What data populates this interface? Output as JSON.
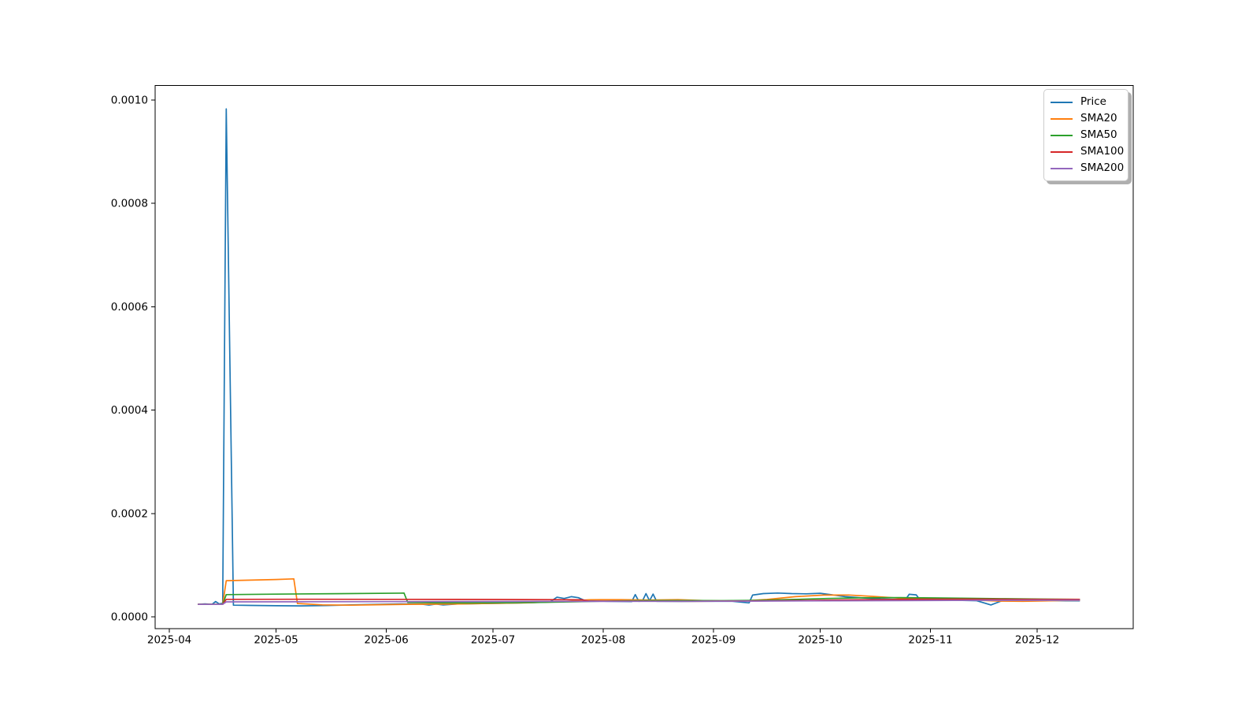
{
  "chart_data": {
    "type": "line",
    "title": "",
    "xlabel": "",
    "ylabel": "",
    "grid": false,
    "x_axis": {
      "start": "2025-03-28",
      "end": "2025-12-28",
      "ticks": [
        {
          "label": "2025-04",
          "date": "2025-04-01"
        },
        {
          "label": "2025-05",
          "date": "2025-05-01"
        },
        {
          "label": "2025-06",
          "date": "2025-06-01"
        },
        {
          "label": "2025-07",
          "date": "2025-07-01"
        },
        {
          "label": "2025-08",
          "date": "2025-08-01"
        },
        {
          "label": "2025-09",
          "date": "2025-09-01"
        },
        {
          "label": "2025-10",
          "date": "2025-10-01"
        },
        {
          "label": "2025-11",
          "date": "2025-11-01"
        },
        {
          "label": "2025-12",
          "date": "2025-12-01"
        }
      ]
    },
    "y_axis": {
      "min": -2.29e-05,
      "max": 0.0010282,
      "ticks": [
        {
          "label": "0.0000",
          "value": 0.0
        },
        {
          "label": "0.0002",
          "value": 0.0002
        },
        {
          "label": "0.0004",
          "value": 0.0004
        },
        {
          "label": "0.0006",
          "value": 0.0006
        },
        {
          "label": "0.0008",
          "value": 0.0008
        },
        {
          "label": "0.0010",
          "value": 0.001
        }
      ]
    },
    "legend": {
      "location": "upper right",
      "entries": [
        "Price",
        "SMA20",
        "SMA50",
        "SMA100",
        "SMA200"
      ]
    },
    "series": [
      {
        "name": "Price",
        "color": "#1f77b4",
        "points": [
          [
            "2025-04-09",
            2.42e-05
          ],
          [
            "2025-04-11",
            2.5e-05
          ],
          [
            "2025-04-13",
            2.42e-05
          ],
          [
            "2025-04-14",
            2.95e-05
          ],
          [
            "2025-04-15",
            2.5e-05
          ],
          [
            "2025-04-16",
            2.6e-05
          ],
          [
            "2025-04-17",
            0.000983
          ],
          [
            "2025-04-19",
            2.25e-05
          ],
          [
            "2025-04-24",
            2.2e-05
          ],
          [
            "2025-05-01",
            2.15e-05
          ],
          [
            "2025-05-08",
            2.12e-05
          ],
          [
            "2025-05-15",
            2.18e-05
          ],
          [
            "2025-05-22",
            2.3e-05
          ],
          [
            "2025-05-29",
            2.4e-05
          ],
          [
            "2025-06-05",
            2.5e-05
          ],
          [
            "2025-06-11",
            2.45e-05
          ],
          [
            "2025-06-13",
            2.28e-05
          ],
          [
            "2025-06-15",
            2.47e-05
          ],
          [
            "2025-06-17",
            2.3e-05
          ],
          [
            "2025-06-21",
            2.5e-05
          ],
          [
            "2025-06-28",
            2.57e-05
          ],
          [
            "2025-07-05",
            2.65e-05
          ],
          [
            "2025-07-12",
            2.75e-05
          ],
          [
            "2025-07-17",
            2.9e-05
          ],
          [
            "2025-07-19",
            3.8e-05
          ],
          [
            "2025-07-21",
            3.55e-05
          ],
          [
            "2025-07-23",
            3.9e-05
          ],
          [
            "2025-07-25",
            3.7e-05
          ],
          [
            "2025-07-27",
            3.1e-05
          ],
          [
            "2025-08-02",
            3e-05
          ],
          [
            "2025-08-09",
            2.95e-05
          ],
          [
            "2025-08-10",
            4.3e-05
          ],
          [
            "2025-08-11",
            3e-05
          ],
          [
            "2025-08-12",
            3.05e-05
          ],
          [
            "2025-08-13",
            4.5e-05
          ],
          [
            "2025-08-14",
            3.1e-05
          ],
          [
            "2025-08-15",
            4.4e-05
          ],
          [
            "2025-08-16",
            3e-05
          ],
          [
            "2025-08-23",
            2.98e-05
          ],
          [
            "2025-08-30",
            3e-05
          ],
          [
            "2025-09-06",
            3.03e-05
          ],
          [
            "2025-09-11",
            2.7e-05
          ],
          [
            "2025-09-12",
            4.2e-05
          ],
          [
            "2025-09-15",
            4.5e-05
          ],
          [
            "2025-09-19",
            4.6e-05
          ],
          [
            "2025-09-23",
            4.5e-05
          ],
          [
            "2025-09-27",
            4.45e-05
          ],
          [
            "2025-10-01",
            4.55e-05
          ],
          [
            "2025-10-04",
            4.3e-05
          ],
          [
            "2025-10-08",
            3.9e-05
          ],
          [
            "2025-10-13",
            3.65e-05
          ],
          [
            "2025-10-18",
            3.45e-05
          ],
          [
            "2025-10-23",
            3.35e-05
          ],
          [
            "2025-10-25",
            3.35e-05
          ],
          [
            "2025-10-26",
            4.35e-05
          ],
          [
            "2025-10-28",
            4.25e-05
          ],
          [
            "2025-10-29",
            3.3e-05
          ],
          [
            "2025-11-04",
            3.22e-05
          ],
          [
            "2025-11-10",
            3.18e-05
          ],
          [
            "2025-11-14",
            3.12e-05
          ],
          [
            "2025-11-18",
            2.3e-05
          ],
          [
            "2025-11-21",
            3.08e-05
          ],
          [
            "2025-11-26",
            3.15e-05
          ],
          [
            "2025-11-30",
            3.28e-05
          ],
          [
            "2025-12-04",
            3.15e-05
          ],
          [
            "2025-12-09",
            3.1e-05
          ],
          [
            "2025-12-13",
            3.1e-05
          ]
        ]
      },
      {
        "name": "SMA20",
        "color": "#ff7f0e",
        "points": [
          [
            "2025-04-09",
            2.4e-05
          ],
          [
            "2025-04-16",
            2.42e-05
          ],
          [
            "2025-04-17",
            7e-05
          ],
          [
            "2025-04-24",
            7.1e-05
          ],
          [
            "2025-05-01",
            7.22e-05
          ],
          [
            "2025-05-06",
            7.35e-05
          ],
          [
            "2025-05-07",
            2.58e-05
          ],
          [
            "2025-05-14",
            2.32e-05
          ],
          [
            "2025-05-22",
            2.26e-05
          ],
          [
            "2025-06-01",
            2.36e-05
          ],
          [
            "2025-06-10",
            2.43e-05
          ],
          [
            "2025-06-20",
            2.47e-05
          ],
          [
            "2025-07-01",
            2.6e-05
          ],
          [
            "2025-07-10",
            2.7e-05
          ],
          [
            "2025-07-20",
            2.92e-05
          ],
          [
            "2025-07-28",
            3.3e-05
          ],
          [
            "2025-08-06",
            3.32e-05
          ],
          [
            "2025-08-14",
            3.25e-05
          ],
          [
            "2025-08-22",
            3.32e-05
          ],
          [
            "2025-08-30",
            3.12e-05
          ],
          [
            "2025-09-08",
            3.03e-05
          ],
          [
            "2025-09-16",
            3.35e-05
          ],
          [
            "2025-09-24",
            3.9e-05
          ],
          [
            "2025-10-02",
            4.2e-05
          ],
          [
            "2025-10-09",
            4.22e-05
          ],
          [
            "2025-10-16",
            3.95e-05
          ],
          [
            "2025-10-23",
            3.62e-05
          ],
          [
            "2025-10-30",
            3.5e-05
          ],
          [
            "2025-11-06",
            3.38e-05
          ],
          [
            "2025-11-13",
            3.25e-05
          ],
          [
            "2025-11-20",
            3.05e-05
          ],
          [
            "2025-11-27",
            3e-05
          ],
          [
            "2025-12-03",
            3.08e-05
          ],
          [
            "2025-12-08",
            3.15e-05
          ],
          [
            "2025-12-13",
            3.18e-05
          ]
        ]
      },
      {
        "name": "SMA50",
        "color": "#2ca02c",
        "points": [
          [
            "2025-04-09",
            2.4e-05
          ],
          [
            "2025-04-16",
            2.42e-05
          ],
          [
            "2025-04-17",
            4.3e-05
          ],
          [
            "2025-05-01",
            4.38e-05
          ],
          [
            "2025-05-18",
            4.48e-05
          ],
          [
            "2025-06-06",
            4.58e-05
          ],
          [
            "2025-06-07",
            2.8e-05
          ],
          [
            "2025-06-15",
            2.7e-05
          ],
          [
            "2025-06-25",
            2.68e-05
          ],
          [
            "2025-07-05",
            2.72e-05
          ],
          [
            "2025-07-15",
            2.8e-05
          ],
          [
            "2025-07-25",
            2.92e-05
          ],
          [
            "2025-08-04",
            3.08e-05
          ],
          [
            "2025-08-14",
            3.15e-05
          ],
          [
            "2025-08-24",
            3.15e-05
          ],
          [
            "2025-09-03",
            3.12e-05
          ],
          [
            "2025-09-13",
            3.18e-05
          ],
          [
            "2025-09-23",
            3.35e-05
          ],
          [
            "2025-10-03",
            3.55e-05
          ],
          [
            "2025-10-13",
            3.68e-05
          ],
          [
            "2025-10-23",
            3.72e-05
          ],
          [
            "2025-11-02",
            3.66e-05
          ],
          [
            "2025-11-12",
            3.58e-05
          ],
          [
            "2025-11-22",
            3.5e-05
          ],
          [
            "2025-12-02",
            3.42e-05
          ],
          [
            "2025-12-13",
            3.36e-05
          ]
        ]
      },
      {
        "name": "SMA100",
        "color": "#d62728",
        "points": [
          [
            "2025-04-09",
            2.4e-05
          ],
          [
            "2025-04-16",
            2.42e-05
          ],
          [
            "2025-04-17",
            3.38e-05
          ],
          [
            "2025-05-10",
            3.4e-05
          ],
          [
            "2025-06-01",
            3.38e-05
          ],
          [
            "2025-06-20",
            3.36e-05
          ],
          [
            "2025-07-10",
            3.33e-05
          ],
          [
            "2025-07-26",
            3.3e-05
          ],
          [
            "2025-07-28",
            3.05e-05
          ],
          [
            "2025-08-12",
            3.02e-05
          ],
          [
            "2025-08-27",
            3e-05
          ],
          [
            "2025-09-11",
            3.06e-05
          ],
          [
            "2025-09-26",
            3.16e-05
          ],
          [
            "2025-10-11",
            3.3e-05
          ],
          [
            "2025-10-26",
            3.4e-05
          ],
          [
            "2025-11-10",
            3.42e-05
          ],
          [
            "2025-11-25",
            3.4e-05
          ],
          [
            "2025-12-05",
            3.38e-05
          ],
          [
            "2025-12-13",
            3.36e-05
          ]
        ]
      },
      {
        "name": "SMA200",
        "color": "#9467bd",
        "points": [
          [
            "2025-04-09",
            2.4e-05
          ],
          [
            "2025-04-16",
            2.42e-05
          ],
          [
            "2025-04-17",
            2.9e-05
          ],
          [
            "2025-05-15",
            2.92e-05
          ],
          [
            "2025-06-15",
            2.95e-05
          ],
          [
            "2025-07-15",
            2.98e-05
          ],
          [
            "2025-08-15",
            3e-05
          ],
          [
            "2025-09-15",
            3.05e-05
          ],
          [
            "2025-10-15",
            3.12e-05
          ],
          [
            "2025-11-15",
            3.2e-05
          ],
          [
            "2025-12-13",
            3.22e-05
          ]
        ]
      }
    ]
  }
}
